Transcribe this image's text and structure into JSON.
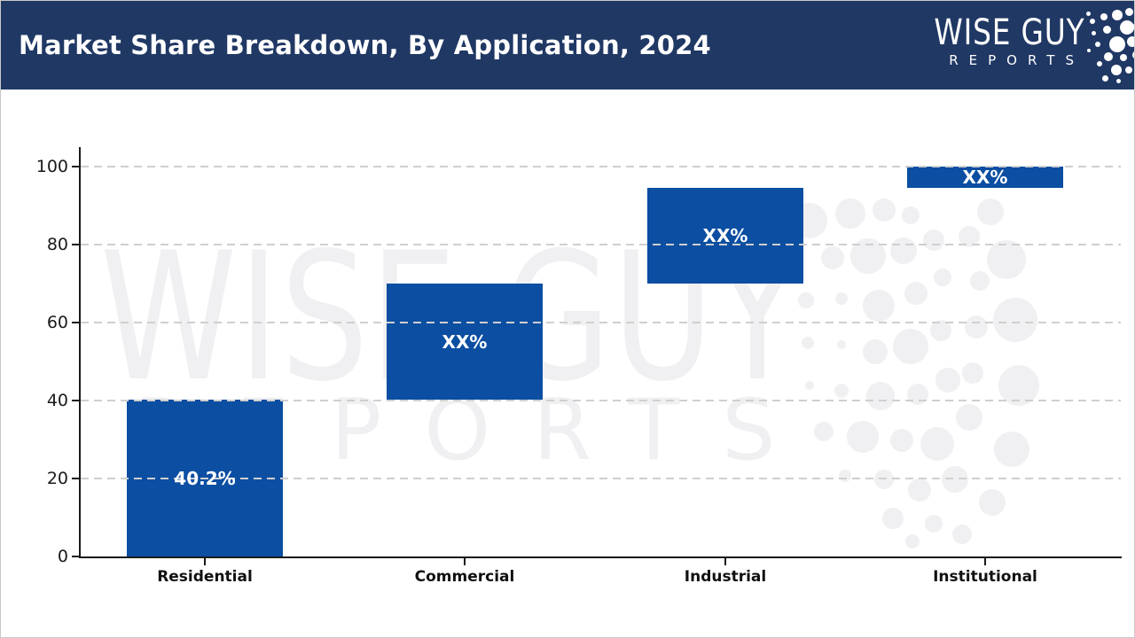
{
  "header": {
    "title": "Market Share Breakdown, By Application, 2024",
    "logo": {
      "line1": "WISE GUY",
      "line2": "REPORTS"
    }
  },
  "watermark": {
    "line1": "WISE GUY",
    "line2": "REPORTS"
  },
  "chart_data": {
    "type": "bar",
    "subtype": "waterfall",
    "title": "Market Share Breakdown, By Application, 2024",
    "categories": [
      "Residential",
      "Commercial",
      "Industrial",
      "Institutional"
    ],
    "segments": [
      {
        "category": "Residential",
        "start": 0,
        "end": 40.2,
        "label": "40.2%"
      },
      {
        "category": "Commercial",
        "start": 40.2,
        "end": 70.0,
        "label": "XX%"
      },
      {
        "category": "Industrial",
        "start": 70.0,
        "end": 94.6,
        "label": "XX%"
      },
      {
        "category": "Institutional",
        "start": 94.6,
        "end": 100.0,
        "label": "XX%"
      }
    ],
    "yticks": [
      0,
      20,
      40,
      60,
      80,
      100
    ],
    "ylim": [
      0,
      105
    ],
    "xlabel": "",
    "ylabel": "",
    "grid": "horizontal-dashed-over-bars",
    "legend": "none",
    "bar_color": "#0b4ea2",
    "bar_label_color": "#ffffff"
  },
  "colors": {
    "header_bg": "#203864",
    "bar_blue": "#0b4ea2",
    "axis": "#1a1a1a",
    "gridline": "#cfcfcf",
    "watermark": "#f0f0f2"
  }
}
